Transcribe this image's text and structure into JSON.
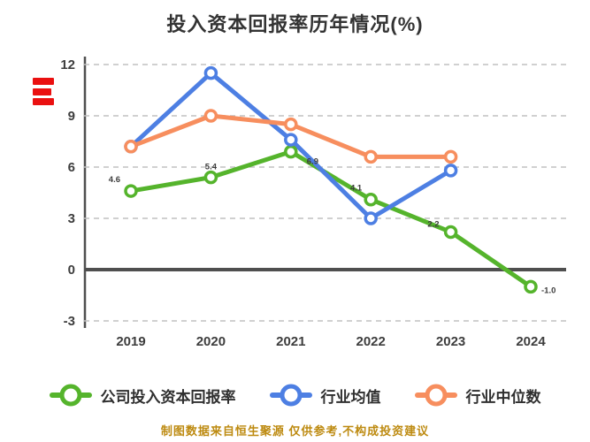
{
  "header": {
    "title": "投入资本回报率历年情况(%)"
  },
  "chart_data": {
    "type": "line",
    "title": "投入资本回报率历年情况(%)",
    "categories": [
      "2019",
      "2020",
      "2021",
      "2022",
      "2023",
      "2024"
    ],
    "yticks": [
      12,
      9,
      6,
      3,
      0,
      -3
    ],
    "ylim": [
      -3,
      12
    ],
    "grid": "horizontal-dashed",
    "legend_position": "bottom",
    "series": [
      {
        "key": "company-roic",
        "name": "公司投入资本回报率",
        "color": "#55b42c",
        "values": [
          4.6,
          5.4,
          6.9,
          4.1,
          2.2,
          -1.0
        ],
        "point_labels": [
          "4.6",
          "5.4",
          "6.9",
          "4.1",
          "2.2",
          "-1.0"
        ]
      },
      {
        "key": "industry-mean",
        "name": "行业均值",
        "color": "#4d7fe3",
        "values": [
          7.2,
          11.5,
          7.6,
          3.0,
          5.8,
          null
        ]
      },
      {
        "key": "industry-median",
        "name": "行业中位数",
        "color": "#f78e5e",
        "values": [
          7.2,
          9.0,
          8.5,
          6.6,
          6.6,
          null
        ]
      }
    ],
    "axis_color": "#4f4f4f",
    "gridline_color": "#c0c0c0",
    "tick_label_color": "#3d3d3d",
    "point_label_color": "#1f1f1f"
  },
  "watermark": {
    "color": "#ea1010"
  },
  "footer": {
    "caption": "制图数据来自恒生聚源 仅供参考,不构成投资建议",
    "color": "#bd8a10"
  },
  "background": "#ffffff"
}
